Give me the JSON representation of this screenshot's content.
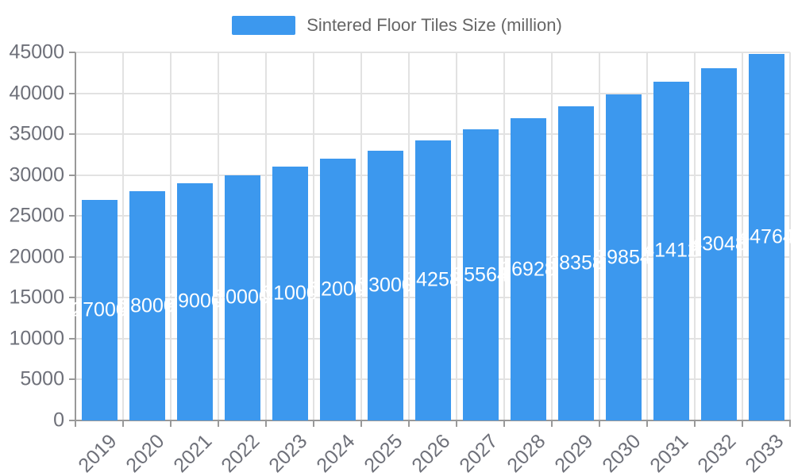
{
  "legend": {
    "label": "Sintered Floor Tiles Size (million)"
  },
  "colors": {
    "bar": "#3C98EE",
    "grid": "#E2E2E2",
    "axis": "#999999",
    "tick_label": "#6E7079",
    "legend_text": "#666666",
    "bar_label": "#FFFFFF",
    "background": "#FFFFFF"
  },
  "chart_data": {
    "type": "bar",
    "title": "Sintered Floor Tiles Size (million)",
    "categories": [
      "2019",
      "2020",
      "2021",
      "2022",
      "2023",
      "2024",
      "2025",
      "2026",
      "2027",
      "2028",
      "2029",
      "2030",
      "2031",
      "2032",
      "2033"
    ],
    "values": [
      27000,
      28000,
      29000,
      30000,
      31000,
      32000,
      33000,
      34258,
      35564,
      36928,
      38358,
      39854,
      41412,
      43048,
      44764
    ],
    "xlabel": "",
    "ylabel": "",
    "ylim": [
      0,
      45000
    ],
    "yticks": [
      0,
      5000,
      10000,
      15000,
      20000,
      25000,
      30000,
      35000,
      40000,
      45000
    ],
    "grid": true,
    "legend_position": "top-center",
    "bar_label_position": "inside-center"
  }
}
